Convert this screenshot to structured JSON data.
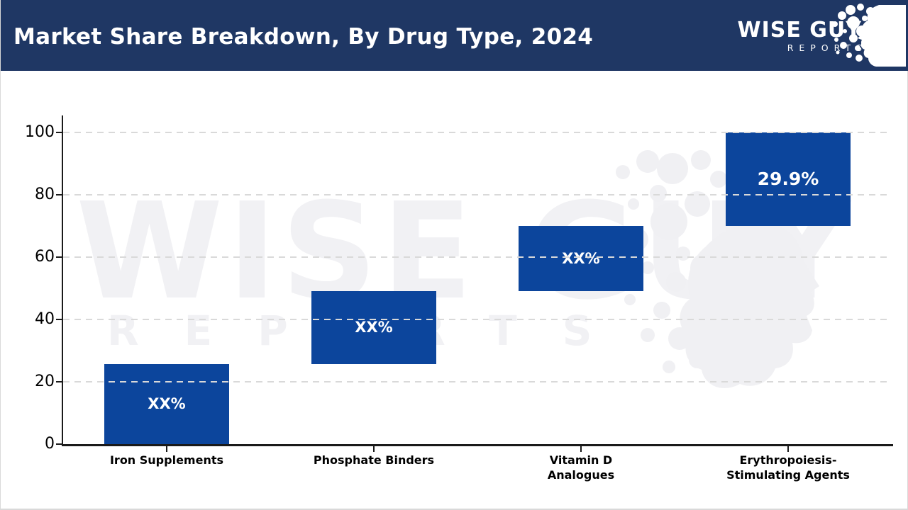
{
  "header": {
    "title": "Market Share Breakdown, By Drug Type, 2024",
    "logo": {
      "line1": "WISE GUY",
      "line2": "REPORTS"
    }
  },
  "watermark": {
    "line1": "WISE GUY",
    "line2": "REPORTS"
  },
  "chart_data": {
    "type": "bar",
    "subtype": "stepped-waterfall",
    "title": "Market Share Breakdown, By Drug Type, 2024",
    "unit": "%",
    "ylim": [
      0,
      100
    ],
    "yticks": [
      0,
      20,
      40,
      60,
      80,
      100
    ],
    "grid": "horizontal-dashed",
    "legend": "none",
    "categories": [
      "Iron Supplements",
      "Phosphate Binders",
      "Vitamin D Analogues",
      "Erythropoiesis-Stimulating Agents"
    ],
    "category_label_lines": [
      [
        "Iron Supplements"
      ],
      [
        "Phosphate Binders"
      ],
      [
        "Vitamin D",
        "Analogues"
      ],
      [
        "Erythropoiesis-",
        "Stimulating Agents"
      ]
    ],
    "segments": [
      {
        "category": "Iron Supplements",
        "start": 0,
        "end": 25.7,
        "label": "XX%"
      },
      {
        "category": "Phosphate Binders",
        "start": 25.7,
        "end": 49.1,
        "label": "XX%"
      },
      {
        "category": "Vitamin D Analogues",
        "start": 49.1,
        "end": 70.1,
        "label": "XX%"
      },
      {
        "category": "Erythropoiesis-Stimulating Agents",
        "start": 70.1,
        "end": 100,
        "label": "29.9%"
      }
    ]
  },
  "colors": {
    "header_bg": "#1f3764",
    "bar": "#0c459c",
    "grid": "#d9d9d9",
    "axis": "#1a1a1a",
    "bar_label": "#ffffff",
    "watermark": "#f1f1f4"
  }
}
